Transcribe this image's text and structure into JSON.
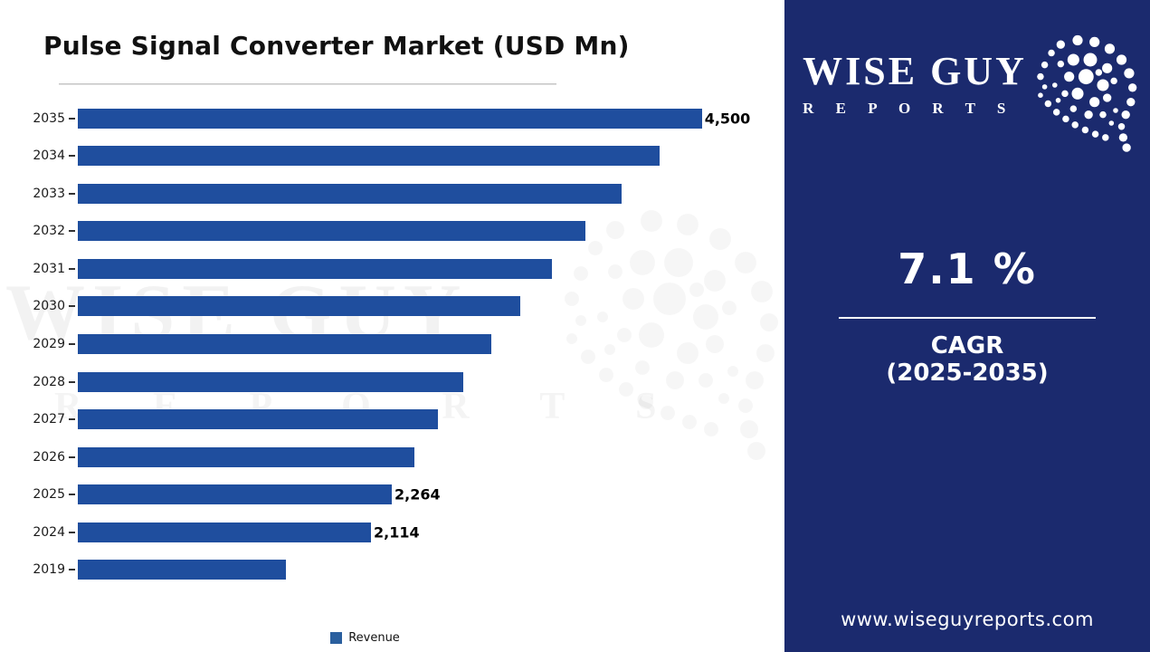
{
  "chart": {
    "title": "Pulse Signal Converter Market (USD Mn)",
    "bar_color": "#1f4e9e",
    "legend_label": "Revenue"
  },
  "chart_data": {
    "type": "bar",
    "orientation": "horizontal",
    "title": "Pulse Signal Converter Market (USD Mn)",
    "x_unit": "USD Mn",
    "categories": [
      "2035",
      "2034",
      "2033",
      "2032",
      "2031",
      "2030",
      "2029",
      "2028",
      "2027",
      "2026",
      "2025",
      "2024",
      "2019"
    ],
    "values": [
      4500,
      4197,
      3919,
      3659,
      3417,
      3190,
      2979,
      2781,
      2597,
      2425,
      2264,
      2114,
      1500
    ],
    "bar_labels": [
      "4,500",
      "",
      "",
      "",
      "",
      "",
      "",
      "",
      "",
      "",
      "2,264",
      "2,114",
      ""
    ],
    "xlim": [
      0,
      4900
    ],
    "legend": [
      "Revenue"
    ],
    "legend_position": "bottom",
    "grid": false
  },
  "watermark": {
    "line1": "WISE GUY",
    "line2": "R E P O R T S"
  },
  "panel": {
    "logo_line1": "WISE GUY",
    "logo_line2": "R E P O R T S",
    "cagr_value": "7.1 %",
    "cagr_label_line1": "CAGR",
    "cagr_label_line2": "(2025-2035)",
    "website": "www.wiseguyreports.com"
  }
}
